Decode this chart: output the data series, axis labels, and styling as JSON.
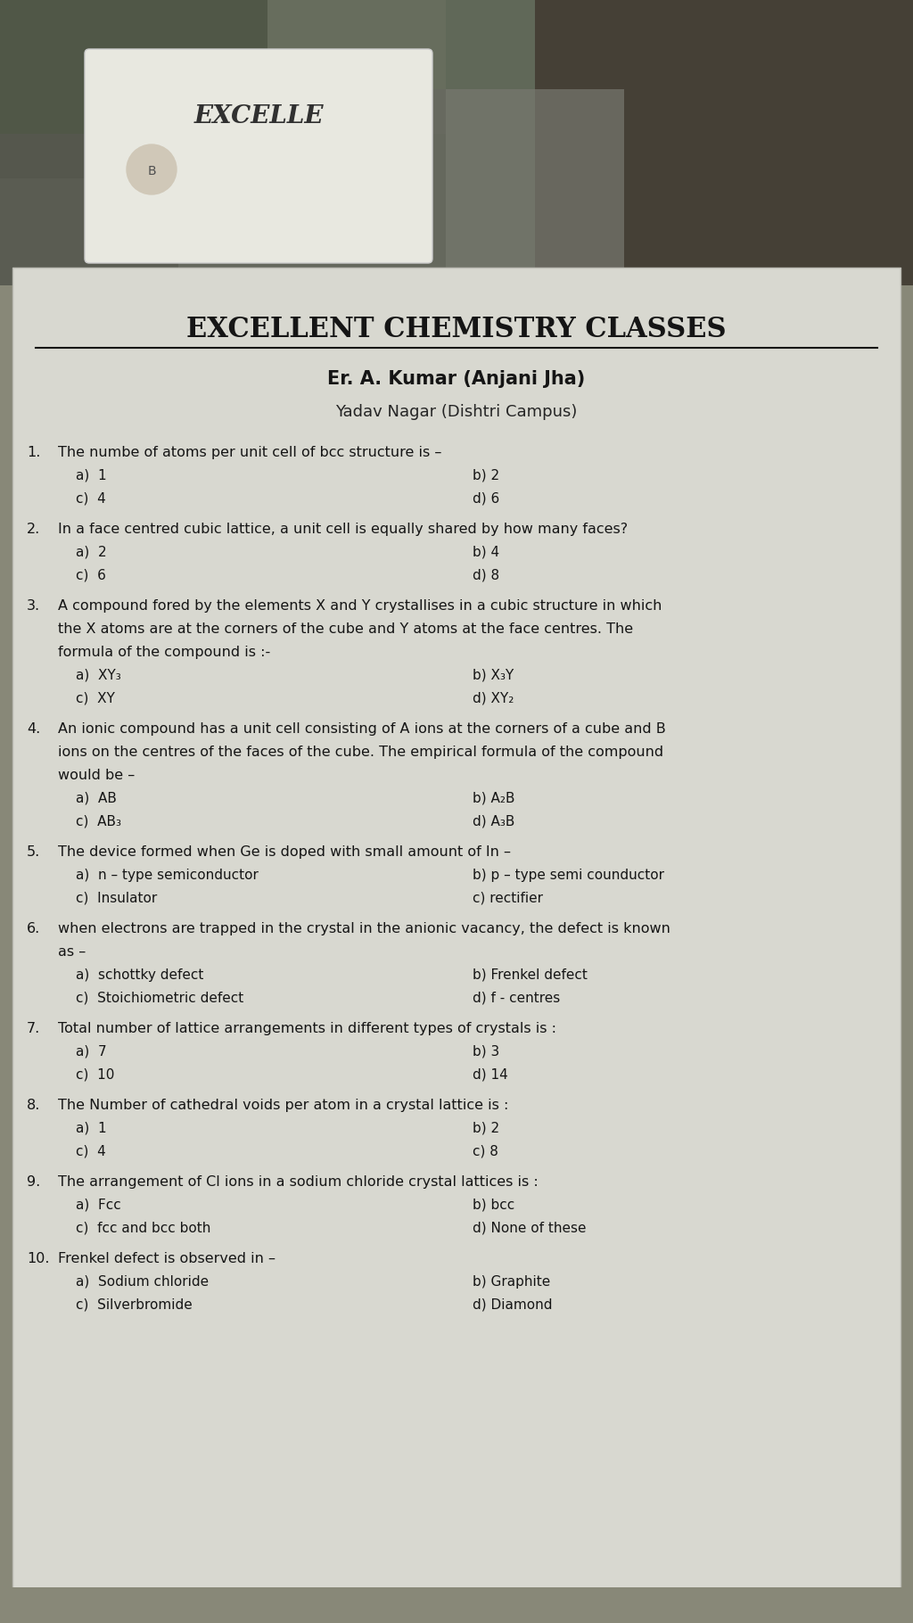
{
  "bg_top_color": "#7a7a6a",
  "bg_paper_color": "#d0d0c8",
  "text_color": "#1a1a1a",
  "title1": "EXCELLENT CHEMISTRY CLASSES",
  "title2": "Er. A. Kumar (Anjani Jha)",
  "title3": "Yadav Nagar (Dishtri Campus)",
  "questions": [
    {
      "num": "1.",
      "text": "The numbe of atoms per unit cell of bcc structure is –",
      "options": [
        [
          "a)  1",
          "b) 2"
        ],
        [
          "c)  4",
          "d) 6"
        ]
      ]
    },
    {
      "num": "2.",
      "text": "In a face centred cubic lattice, a unit cell is equally shared by how many faces?",
      "options": [
        [
          "a)  2",
          "b) 4"
        ],
        [
          "c)  6",
          "d) 8"
        ]
      ]
    },
    {
      "num": "3.",
      "text": "A compound fored by the elements X and Y crystallises in a cubic structure in which",
      "text_extra": [
        "the X atoms are at the corners of the cube and Y atoms at the face centres. The",
        "formula of the compound is :-"
      ],
      "options": [
        [
          "a)  XY₃",
          "b) X₃Y"
        ],
        [
          "c)  XY",
          "d) XY₂"
        ]
      ]
    },
    {
      "num": "4.",
      "text": "An ionic compound has a unit cell consisting of A ions at the corners of a cube and B",
      "text_extra": [
        "ions on the centres of the faces of the cube. The empirical formula of the compound",
        "would be –"
      ],
      "options": [
        [
          "a)  AB",
          "b) A₂B"
        ],
        [
          "c)  AB₃",
          "d) A₃B"
        ]
      ]
    },
    {
      "num": "5.",
      "text": "The device formed when Ge is doped with small amount of In –",
      "text_extra": [],
      "options": [
        [
          "a)  n – type semiconductor",
          "b) p – type semi counductor"
        ],
        [
          "c)  Insulator",
          "c) rectifier"
        ]
      ]
    },
    {
      "num": "6.",
      "text": "when electrons are trapped in the crystal in the anionic vacancy, the defect is known",
      "text_extra": [
        "as –"
      ],
      "options": [
        [
          "a)  schottky defect",
          "b) Frenkel defect"
        ],
        [
          "c)  Stoichiometric defect",
          "d) f - centres"
        ]
      ]
    },
    {
      "num": "7.",
      "text": "Total number of lattice arrangements in different types of crystals is :",
      "text_extra": [],
      "options": [
        [
          "a)  7",
          "b) 3"
        ],
        [
          "c)  10",
          "d) 14"
        ]
      ]
    },
    {
      "num": "8.",
      "text": "The Number of cathedral voids per atom in a crystal lattice is :",
      "text_extra": [],
      "options": [
        [
          "a)  1",
          "b) 2"
        ],
        [
          "c)  4",
          "c) 8"
        ]
      ]
    },
    {
      "num": "9.",
      "text": "The arrangement of Cl ions in a sodium chloride crystal lattices is :",
      "text_extra": [],
      "options": [
        [
          "a)  Fcc",
          "b) bcc"
        ],
        [
          "c)  fcc and bcc both",
          "d) None of these"
        ]
      ]
    },
    {
      "num": "10.",
      "text": "Frenkel defect is observed in –",
      "text_extra": [],
      "options": [
        [
          "a)  Sodium chloride",
          "b) Graphite"
        ],
        [
          "c)  Silverbromide",
          "d) Diamond"
        ]
      ]
    }
  ]
}
